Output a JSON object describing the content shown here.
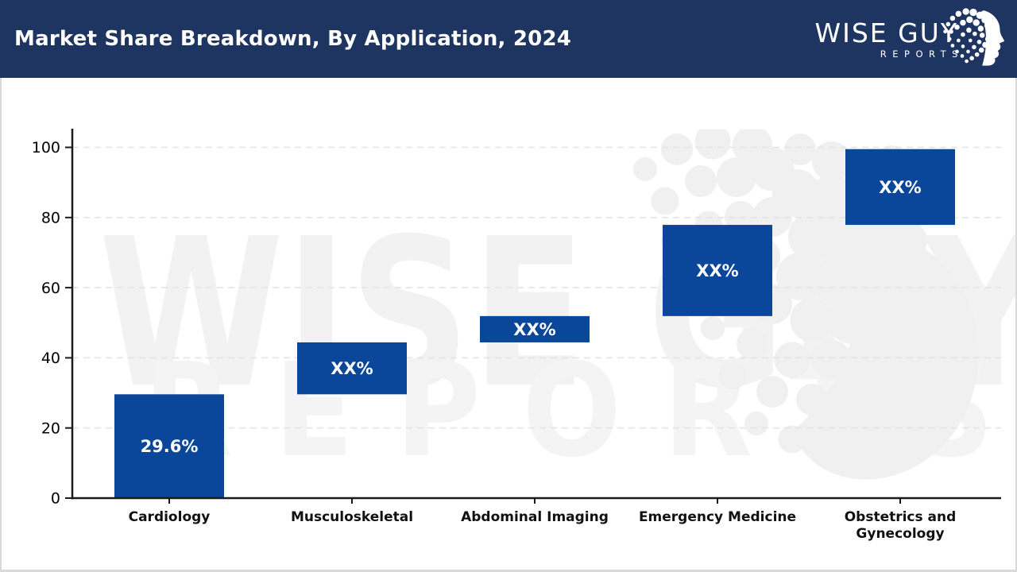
{
  "header": {
    "title": "Market Share Breakdown, By Application, 2024",
    "logo": {
      "brand": "WISE GUY",
      "sub": "REPORTS",
      "face_icon": "dotted-head-profile-icon"
    }
  },
  "watermark": {
    "line1": "WISE GUY",
    "line2": "REPORTS"
  },
  "colors": {
    "header_bg": "#1f3561",
    "bar": "#0a4699",
    "bar_label": "#ffffff",
    "axis": "#1a1a1a",
    "grid": "#e4e4e4",
    "tick_label": "#000000",
    "category_label": "#111111",
    "watermark": "#f2f2f2"
  },
  "chart_data": {
    "type": "bar",
    "variant": "waterfall",
    "title": "Market Share Breakdown, By Application, 2024",
    "categories": [
      "Cardiology",
      "Musculoskeletal",
      "Abdominal Imaging",
      "Emergency Medicine",
      "Obstetrics and Gynecology"
    ],
    "category_label_lines": [
      [
        "Cardiology"
      ],
      [
        "Musculoskeletal"
      ],
      [
        "Abdominal Imaging"
      ],
      [
        "Emergency Medicine"
      ],
      [
        "Obstetrics and",
        "Gynecology"
      ]
    ],
    "segments": [
      {
        "category": "Cardiology",
        "start": 0,
        "end": 29.6,
        "label": "29.6%"
      },
      {
        "category": "Musculoskeletal",
        "start": 29.6,
        "end": 44.4,
        "label": "XX%"
      },
      {
        "category": "Abdominal Imaging",
        "start": 44.4,
        "end": 51.9,
        "label": "XX%"
      },
      {
        "category": "Emergency Medicine",
        "start": 51.9,
        "end": 77.9,
        "label": "XX%"
      },
      {
        "category": "Obstetrics and Gynecology",
        "start": 77.9,
        "end": 99.5,
        "label": "XX%"
      }
    ],
    "yticks": [
      0,
      20,
      40,
      60,
      80,
      100
    ],
    "ylim": [
      0,
      107
    ],
    "xlabel": "",
    "ylabel": "",
    "grid": "horizontal-dashed",
    "legend": "none"
  }
}
